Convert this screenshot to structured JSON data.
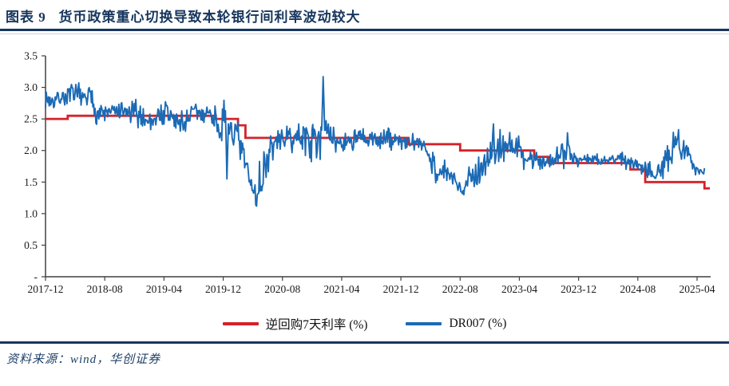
{
  "header": {
    "title": "图表 9   货币政策重心切换导致本轮银行间利率波动较大"
  },
  "footer": {
    "source": "资料来源：wind，华创证券"
  },
  "colors": {
    "accent_navy": "#17365d",
    "accent_navy_light": "#c9d6e6",
    "repo_red": "#d42229",
    "dr007_blue": "#1b6ab5",
    "axis": "#404040",
    "tick_text": "#1a1a1a"
  },
  "chart_data": {
    "type": "line",
    "title": "货币政策重心切换导致本轮银行间利率波动较大",
    "xlabel": "",
    "ylabel": "",
    "ylim": [
      0,
      3.5
    ],
    "ytick_step": 0.5,
    "ytick_labels": [
      "3.5",
      "3.0",
      "2.5",
      "2.0",
      "1.5",
      "1.0",
      "0.5",
      "-"
    ],
    "x_start_month": "2017-12",
    "x_end_month": "2025-05",
    "xtick_interval_months": 8,
    "xtick_labels": [
      "2017-12",
      "2018-08",
      "2019-04",
      "2019-12",
      "2020-08",
      "2021-04",
      "2021-12",
      "2022-08",
      "2023-04",
      "2023-12",
      "2024-08",
      "2025-04"
    ],
    "grid": false,
    "legend_position": "bottom",
    "series": [
      {
        "name": "逆回购7天利率 (%)",
        "type": "step",
        "color_key": "repo_red",
        "steps": [
          [
            "2017-12",
            2.5
          ],
          [
            "2018-03",
            2.55
          ],
          [
            "2019-11",
            2.5
          ],
          [
            "2020-02",
            2.4
          ],
          [
            "2020-03",
            2.2
          ],
          [
            "2022-01",
            2.1
          ],
          [
            "2022-08",
            2.0
          ],
          [
            "2023-06",
            1.9
          ],
          [
            "2023-08",
            1.8
          ],
          [
            "2024-07",
            1.7
          ],
          [
            "2024-09",
            1.5
          ],
          [
            "2025-05",
            1.4
          ]
        ]
      },
      {
        "name": "DR007 (%)",
        "type": "noisy-line",
        "color_key": "dr007_blue",
        "points_per_month": 10,
        "noise_seed": 7,
        "end_value": 1.72,
        "monthly_anchors": [
          [
            "2017-12",
            2.82,
            0.1
          ],
          [
            "2018-01",
            2.78,
            0.1
          ],
          [
            "2018-02",
            2.84,
            0.1
          ],
          [
            "2018-03",
            2.86,
            0.12
          ],
          [
            "2018-04",
            2.85,
            0.18
          ],
          [
            "2018-05",
            2.78,
            0.12
          ],
          [
            "2018-06",
            2.85,
            0.15
          ],
          [
            "2018-07",
            2.62,
            0.18
          ],
          [
            "2018-08",
            2.58,
            0.1
          ],
          [
            "2018-09",
            2.62,
            0.1
          ],
          [
            "2018-10",
            2.6,
            0.12
          ],
          [
            "2018-11",
            2.58,
            0.15
          ],
          [
            "2018-12",
            2.6,
            0.15
          ],
          [
            "2019-01",
            2.55,
            0.18
          ],
          [
            "2019-02",
            2.45,
            0.15
          ],
          [
            "2019-03",
            2.55,
            0.15
          ],
          [
            "2019-04",
            2.58,
            0.18
          ],
          [
            "2019-05",
            2.55,
            0.18
          ],
          [
            "2019-06",
            2.4,
            0.25
          ],
          [
            "2019-07",
            2.48,
            0.2
          ],
          [
            "2019-08",
            2.62,
            0.1
          ],
          [
            "2019-09",
            2.58,
            0.12
          ],
          [
            "2019-10",
            2.6,
            0.12
          ],
          [
            "2019-11",
            2.5,
            0.15
          ],
          [
            "2019-12",
            2.35,
            0.3
          ],
          [
            "2020-01",
            2.4,
            0.2
          ],
          [
            "2020-02",
            2.1,
            0.25
          ],
          [
            "2020-03",
            1.75,
            0.3
          ],
          [
            "2020-04",
            1.35,
            0.22
          ],
          [
            "2020-05",
            1.5,
            0.3
          ],
          [
            "2020-06",
            1.9,
            0.25
          ],
          [
            "2020-07",
            2.12,
            0.15
          ],
          [
            "2020-08",
            2.2,
            0.1
          ],
          [
            "2020-09",
            2.18,
            0.15
          ],
          [
            "2020-10",
            2.2,
            0.15
          ],
          [
            "2020-11",
            2.25,
            0.2
          ],
          [
            "2020-12",
            2.1,
            0.25
          ],
          [
            "2021-01",
            2.4,
            0.4
          ],
          [
            "2021-02",
            2.25,
            0.15
          ],
          [
            "2021-03",
            2.15,
            0.15
          ],
          [
            "2021-04",
            2.12,
            0.12
          ],
          [
            "2021-05",
            2.15,
            0.12
          ],
          [
            "2021-06",
            2.2,
            0.15
          ],
          [
            "2021-07",
            2.15,
            0.15
          ],
          [
            "2021-08",
            2.15,
            0.12
          ],
          [
            "2021-09",
            2.2,
            0.15
          ],
          [
            "2021-10",
            2.18,
            0.15
          ],
          [
            "2021-11",
            2.15,
            0.12
          ],
          [
            "2021-12",
            2.18,
            0.15
          ],
          [
            "2022-01",
            2.1,
            0.12
          ],
          [
            "2022-02",
            2.1,
            0.12
          ],
          [
            "2022-03",
            2.1,
            0.1
          ],
          [
            "2022-04",
            1.9,
            0.15
          ],
          [
            "2022-05",
            1.62,
            0.15
          ],
          [
            "2022-06",
            1.68,
            0.15
          ],
          [
            "2022-07",
            1.52,
            0.12
          ],
          [
            "2022-08",
            1.42,
            0.1
          ],
          [
            "2022-09",
            1.55,
            0.12
          ],
          [
            "2022-10",
            1.65,
            0.18
          ],
          [
            "2022-11",
            1.75,
            0.2
          ],
          [
            "2022-12",
            1.9,
            0.3
          ],
          [
            "2023-01",
            2.0,
            0.22
          ],
          [
            "2023-02",
            2.12,
            0.2
          ],
          [
            "2023-03",
            2.05,
            0.15
          ],
          [
            "2023-04",
            2.0,
            0.18
          ],
          [
            "2023-05",
            1.85,
            0.12
          ],
          [
            "2023-06",
            1.9,
            0.15
          ],
          [
            "2023-07",
            1.8,
            0.1
          ],
          [
            "2023-08",
            1.82,
            0.12
          ],
          [
            "2023-09",
            1.95,
            0.12
          ],
          [
            "2023-10",
            1.95,
            0.18
          ],
          [
            "2023-11",
            1.95,
            0.18
          ],
          [
            "2023-12",
            1.85,
            0.12
          ],
          [
            "2024-01",
            1.85,
            0.1
          ],
          [
            "2024-02",
            1.85,
            0.08
          ],
          [
            "2024-03",
            1.85,
            0.08
          ],
          [
            "2024-04",
            1.85,
            0.06
          ],
          [
            "2024-05",
            1.85,
            0.06
          ],
          [
            "2024-06",
            1.9,
            0.12
          ],
          [
            "2024-07",
            1.8,
            0.1
          ],
          [
            "2024-08",
            1.8,
            0.1
          ],
          [
            "2024-09",
            1.75,
            0.12
          ],
          [
            "2024-10",
            1.65,
            0.1
          ],
          [
            "2024-11",
            1.7,
            0.12
          ],
          [
            "2024-12",
            1.8,
            0.2
          ],
          [
            "2025-01",
            2.05,
            0.22
          ],
          [
            "2025-02",
            2.05,
            0.18
          ],
          [
            "2025-03",
            1.9,
            0.12
          ],
          [
            "2025-04",
            1.7,
            0.08
          ],
          [
            "2025-05",
            1.65,
            0.06
          ]
        ],
        "extremes": [
          [
            "2018-04",
            3.07
          ],
          [
            "2019-12",
            1.55
          ],
          [
            "2020-04",
            1.12
          ],
          [
            "2021-01",
            3.17
          ],
          [
            "2022-08",
            1.3
          ],
          [
            "2022-12",
            2.42
          ],
          [
            "2023-10",
            2.28
          ],
          [
            "2025-01",
            2.33
          ]
        ]
      }
    ]
  }
}
